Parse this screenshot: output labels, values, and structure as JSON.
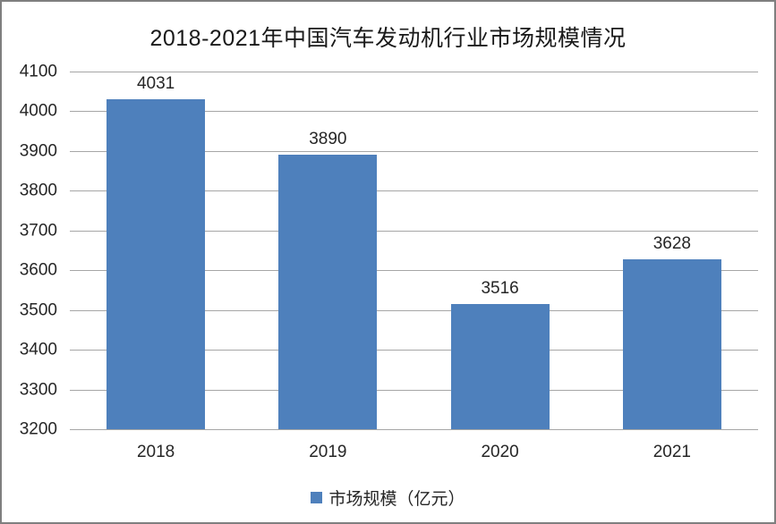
{
  "chart_data": {
    "type": "bar",
    "title": "2018-2021年中国汽车发动机行业市场规模情况",
    "categories": [
      "2018",
      "2019",
      "2020",
      "2021"
    ],
    "values": [
      4031,
      3890,
      3516,
      3628
    ],
    "series_name": "市场规模（亿元）",
    "xlabel": "",
    "ylabel": "",
    "ylim": [
      3200,
      4100
    ],
    "ytick_step": 100,
    "yticks": [
      4100,
      4000,
      3900,
      3800,
      3700,
      3600,
      3500,
      3400,
      3300,
      3200
    ],
    "grid": true,
    "data_labels": true,
    "legend_position": "bottom",
    "bar_color": "#4e80bc",
    "gridline_color": "#a6a6a6",
    "text_color": "#262626",
    "border_color": "#7f7f7f"
  },
  "legend": {
    "label": "市场规模（亿元）"
  }
}
